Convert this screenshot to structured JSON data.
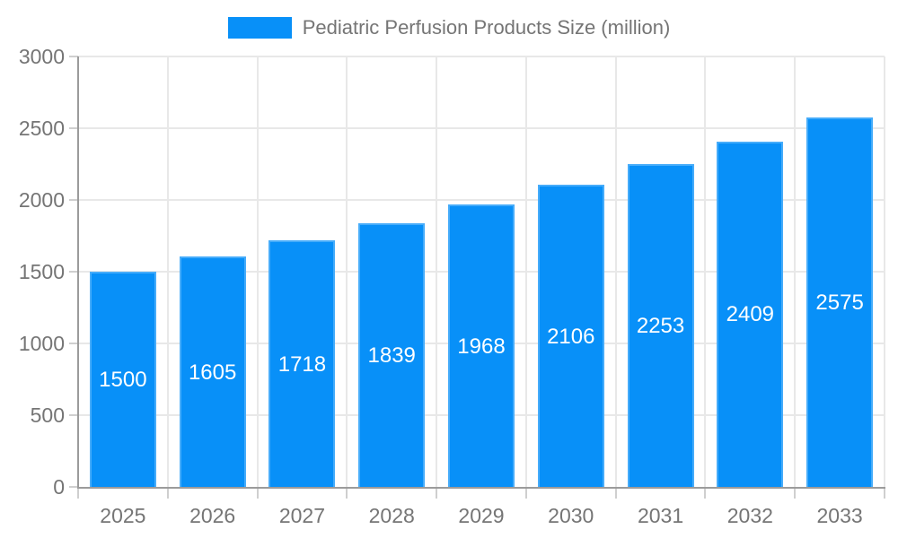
{
  "legend": {
    "label": "Pediatric Perfusion Products Size (million)"
  },
  "chart_data": {
    "type": "bar",
    "title": "Pediatric Perfusion Products Size (million)",
    "series_name": "Pediatric Perfusion Products Size (million)",
    "categories": [
      "2025",
      "2026",
      "2027",
      "2028",
      "2029",
      "2030",
      "2031",
      "2032",
      "2033"
    ],
    "values": [
      1500,
      1605,
      1718,
      1839,
      1968,
      2106,
      2253,
      2409,
      2575
    ],
    "xlabel": "",
    "ylabel": "",
    "ylim": [
      0,
      3000
    ],
    "ytick_step": 500,
    "ytick_labels": [
      "0",
      "500",
      "1000",
      "1500",
      "2000",
      "2500",
      "3000"
    ],
    "grid": true,
    "legend_position": "top",
    "value_label_position": "inside-center",
    "colors": {
      "bar": "#0890F8",
      "value_label_text": "#ffffff",
      "axis_text": "#757575",
      "axis_line": "#9b9b9b",
      "tick_line": "#cfcfcf",
      "gridline": "#e8e8e8",
      "background": "#ffffff"
    }
  }
}
